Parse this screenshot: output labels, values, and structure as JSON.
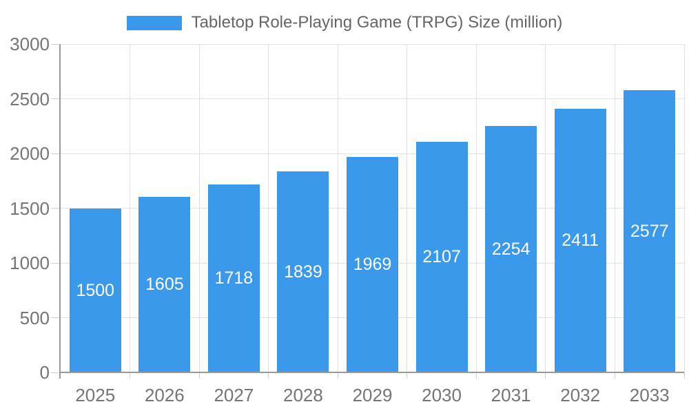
{
  "chart_data": {
    "type": "bar",
    "title": "Tabletop Role-Playing Game (TRPG) Size (million)",
    "categories": [
      "2025",
      "2026",
      "2027",
      "2028",
      "2029",
      "2030",
      "2031",
      "2032",
      "2033"
    ],
    "values": [
      1500,
      1605,
      1718,
      1839,
      1969,
      2107,
      2254,
      2411,
      2577
    ],
    "xlabel": "",
    "ylabel": "",
    "ylim": [
      0,
      3000
    ],
    "yticks": [
      0,
      500,
      1000,
      1500,
      2000,
      2500,
      3000
    ],
    "grid": true,
    "legend": {
      "position": "top",
      "entries": [
        {
          "label": "Tabletop Role-Playing Game (TRPG) Size (million)",
          "color": "#3b99eb"
        }
      ]
    },
    "colors": {
      "bar": "#3b99eb",
      "value_label": "#ffffff",
      "axis_line": "#999999",
      "grid_line": "#e1e1e1",
      "tick_mark": "#cfcfcf",
      "axis_text": "#757575",
      "legend_text": "#666666",
      "background": "#ffffff"
    }
  }
}
